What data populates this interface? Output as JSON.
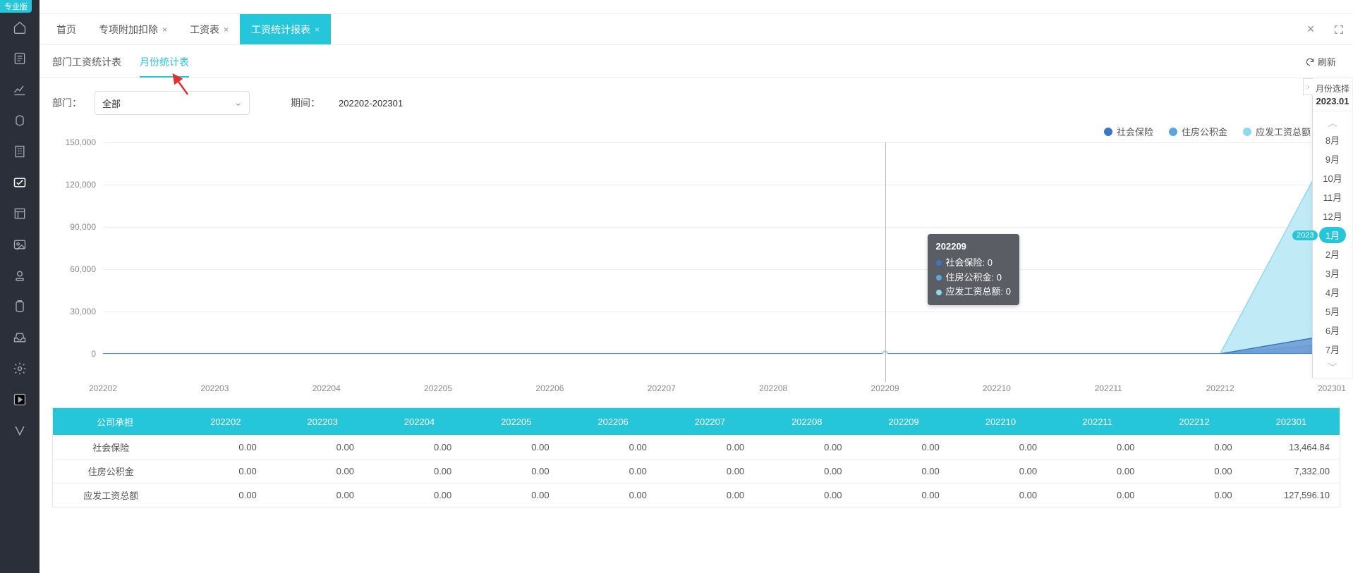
{
  "badge": "专业版",
  "tabs": [
    {
      "label": "首页",
      "closable": false
    },
    {
      "label": "专项附加扣除",
      "closable": true
    },
    {
      "label": "工资表",
      "closable": true
    },
    {
      "label": "工资统计报表",
      "closable": true,
      "active": true
    }
  ],
  "subtabs": [
    {
      "label": "部门工资统计表"
    },
    {
      "label": "月份统计表",
      "active": true
    }
  ],
  "refresh": "刷新",
  "filter": {
    "dept_label": "部门：",
    "dept_value": "全部",
    "period_label": "期间：",
    "period_value": "202202-202301"
  },
  "legend": [
    {
      "label": "社会保险",
      "color": "#3b78c4"
    },
    {
      "label": "住房公积金",
      "color": "#5aa7e0"
    },
    {
      "label": "应发工资总额",
      "color": "#8fd9f0"
    }
  ],
  "chart": {
    "type": "area",
    "ylim": [
      0,
      150000
    ],
    "yticks": [
      0,
      30000,
      60000,
      90000,
      120000,
      150000
    ],
    "ytick_labels": [
      "0",
      "30,000",
      "60,000",
      "90,000",
      "120,000",
      "150,000"
    ],
    "categories": [
      "202202",
      "202203",
      "202204",
      "202205",
      "202206",
      "202207",
      "202208",
      "202209",
      "202210",
      "202211",
      "202212",
      "202301"
    ],
    "series": [
      {
        "name": "社会保险",
        "color": "#3b78c4",
        "fill": "#6a9bd4",
        "values": [
          0,
          0,
          0,
          0,
          0,
          0,
          0,
          0,
          0,
          0,
          0,
          13464.84
        ]
      },
      {
        "name": "住房公积金",
        "color": "#5aa7e0",
        "fill": "#8cc5ea",
        "values": [
          0,
          0,
          0,
          0,
          0,
          0,
          0,
          0,
          0,
          0,
          0,
          7332.0
        ]
      },
      {
        "name": "应发工资总额",
        "color": "#8fd9f0",
        "fill": "#b5e7f5",
        "values": [
          0,
          0,
          0,
          0,
          0,
          0,
          0,
          0,
          0,
          0,
          0,
          148392.94
        ]
      }
    ],
    "hover_index": 7,
    "tooltip": {
      "title": "202209",
      "rows": [
        {
          "label": "社会保险: 0",
          "color": "#3b78c4"
        },
        {
          "label": "住房公积金: 0",
          "color": "#5aa7e0"
        },
        {
          "label": "应发工资总额: 0",
          "color": "#8fd9f0"
        }
      ]
    },
    "background_color": "#ffffff",
    "grid_color": "#eeeeee"
  },
  "table": {
    "header_first": "公司承担",
    "columns": [
      "202202",
      "202203",
      "202204",
      "202205",
      "202206",
      "202207",
      "202208",
      "202209",
      "202210",
      "202211",
      "202212",
      "202301"
    ],
    "rows": [
      {
        "label": "社会保险",
        "values": [
          "0.00",
          "0.00",
          "0.00",
          "0.00",
          "0.00",
          "0.00",
          "0.00",
          "0.00",
          "0.00",
          "0.00",
          "0.00",
          "13,464.84"
        ]
      },
      {
        "label": "住房公积金",
        "values": [
          "0.00",
          "0.00",
          "0.00",
          "0.00",
          "0.00",
          "0.00",
          "0.00",
          "0.00",
          "0.00",
          "0.00",
          "0.00",
          "7,332.00"
        ]
      },
      {
        "label": "应发工资总额",
        "values": [
          "0.00",
          "0.00",
          "0.00",
          "0.00",
          "0.00",
          "0.00",
          "0.00",
          "0.00",
          "0.00",
          "0.00",
          "0.00",
          "127,596.10"
        ]
      }
    ]
  },
  "monthpanel": {
    "title": "月份选择",
    "current": "2023.01",
    "year_badge": "2023",
    "items": [
      "8月",
      "9月",
      "10月",
      "11月",
      "12月",
      "1月",
      "2月",
      "3月",
      "4月",
      "5月",
      "6月",
      "7月"
    ],
    "selected_index": 5
  }
}
